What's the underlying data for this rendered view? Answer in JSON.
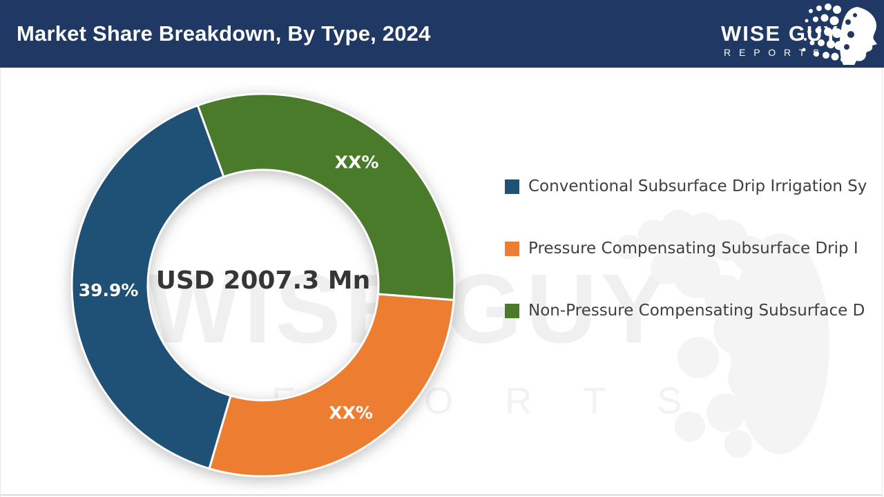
{
  "header": {
    "title": "Market Share Breakdown, By Type, 2024",
    "logo": {
      "line1": "WISE GUY",
      "line2": "R E P O R T S"
    }
  },
  "watermark": {
    "line1": "WISE GUY",
    "line2": "R E P O R T S"
  },
  "chart_data": {
    "type": "pie",
    "subtype": "donut",
    "title": "Market Share Breakdown, By Type, 2024",
    "center_label": "USD 2007.3 Mn",
    "legend_position": "right",
    "start_deg": 340,
    "plot_order": [
      2,
      1,
      0
    ],
    "outer_radius": 277,
    "inner_radius": 167,
    "slices": [
      {
        "label": "Conventional Subsurface Drip Irrigation Sy",
        "display_pct": "39.9%",
        "value_pct": 39.9,
        "color": "#1f5076"
      },
      {
        "label": "Pressure Compensating Subsurface Drip I",
        "display_pct": "XX%",
        "value_pct": 28.3,
        "color": "#ed7d31"
      },
      {
        "label": "Non-Pressure Compensating Subsurface D",
        "display_pct": "XX%",
        "value_pct": 31.8,
        "color": "#4a7b2a"
      }
    ],
    "colors": {
      "header_bg": "#1f3864",
      "center_text": "#363636",
      "legend_text": "#3f3f3f",
      "watermark": "#f0f0f0",
      "slice_separator": "#ffffff"
    }
  }
}
